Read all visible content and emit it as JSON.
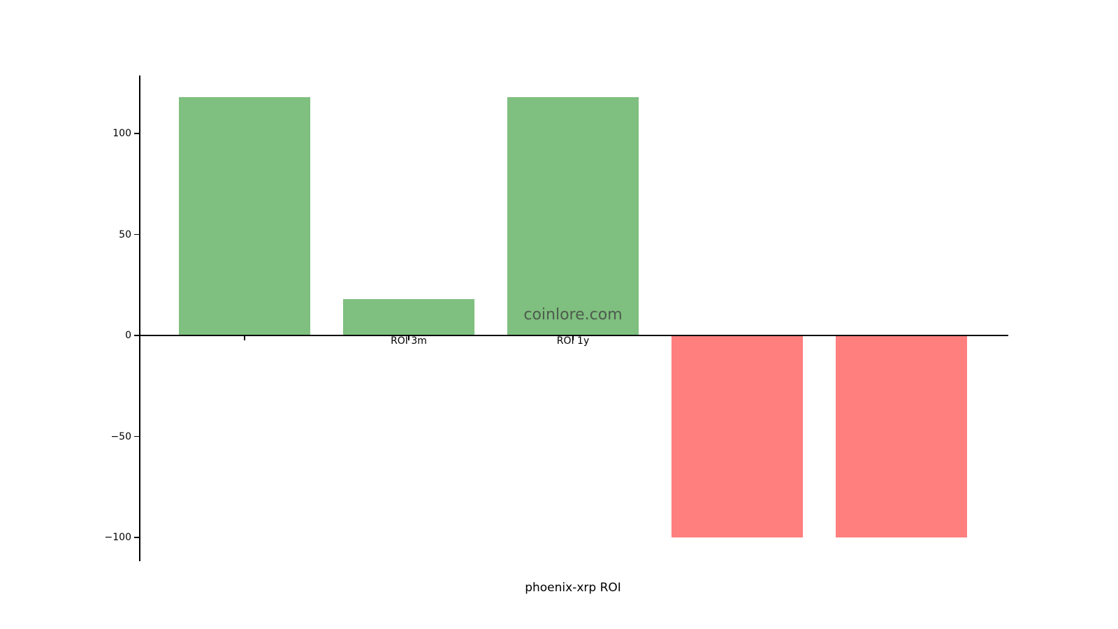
{
  "chart_data": {
    "type": "bar",
    "title": "",
    "xlabel": "phoenix-xrp ROI",
    "ylabel": "",
    "watermark": "coinlore.com",
    "categories": [
      "",
      "ROI 3m",
      "ROI 1y",
      "",
      ""
    ],
    "values": [
      118,
      18,
      118,
      -100,
      -100
    ],
    "series": [
      {
        "name": "ROI",
        "values": [
          118,
          18,
          118,
          -100,
          -100
        ]
      }
    ],
    "bar_colors": [
      "#7fbf7f",
      "#7fbf7f",
      "#7fbf7f",
      "#ff7f7f",
      "#ff7f7f"
    ],
    "positive_color": "#7fbf7f",
    "negative_color": "#ff7f7f",
    "axis_color": "#000000",
    "y_ticks": [
      {
        "value": 100,
        "label": "100"
      },
      {
        "value": 50,
        "label": "50"
      },
      {
        "value": 0,
        "label": "0"
      },
      {
        "value": -50,
        "label": "−50"
      },
      {
        "value": -100,
        "label": "−100"
      }
    ],
    "ylim": [
      -112,
      129
    ],
    "grid": false,
    "legend": null,
    "zero_baseline": true
  }
}
